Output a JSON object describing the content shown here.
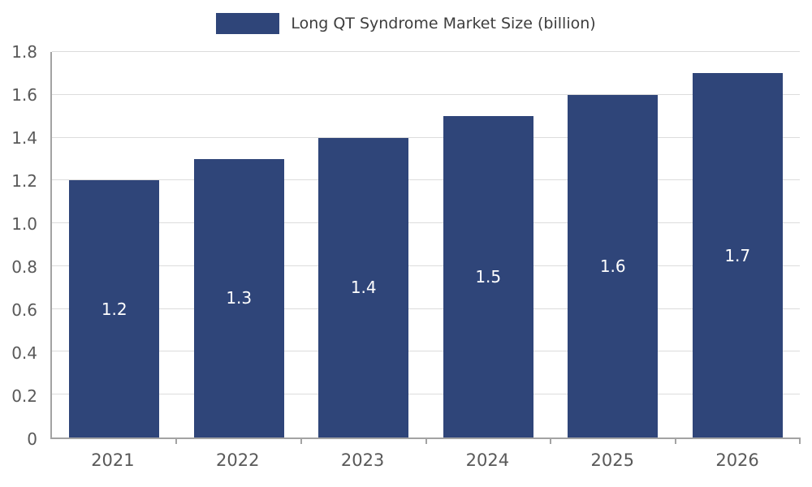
{
  "chart_data": {
    "type": "bar",
    "title": "Long QT Syndrome Market Size (billion)",
    "legend_label": "Long QT Syndrome Market Size (billion)",
    "legend_position": "top-center",
    "categories": [
      "2021",
      "2022",
      "2023",
      "2024",
      "2025",
      "2026"
    ],
    "values": [
      1.2,
      1.3,
      1.4,
      1.5,
      1.6,
      1.7
    ],
    "bar_labels": [
      "1.2",
      "1.3",
      "1.4",
      "1.5",
      "1.6",
      "1.7"
    ],
    "xlabel": "",
    "ylabel": "",
    "ylim": [
      0,
      1.8
    ],
    "ytick_labels": [
      "0",
      "0.2",
      "0.4",
      "0.6",
      "0.8",
      "1.0",
      "1.2",
      "1.4",
      "1.6",
      "1.8"
    ],
    "grid": "horizontal",
    "colors": {
      "bar": "#2F4579",
      "gridline": "#dcdcdc",
      "axis": "#a3a3a3",
      "tick_text": "#595959",
      "bar_label_text": "#ffffff"
    }
  }
}
